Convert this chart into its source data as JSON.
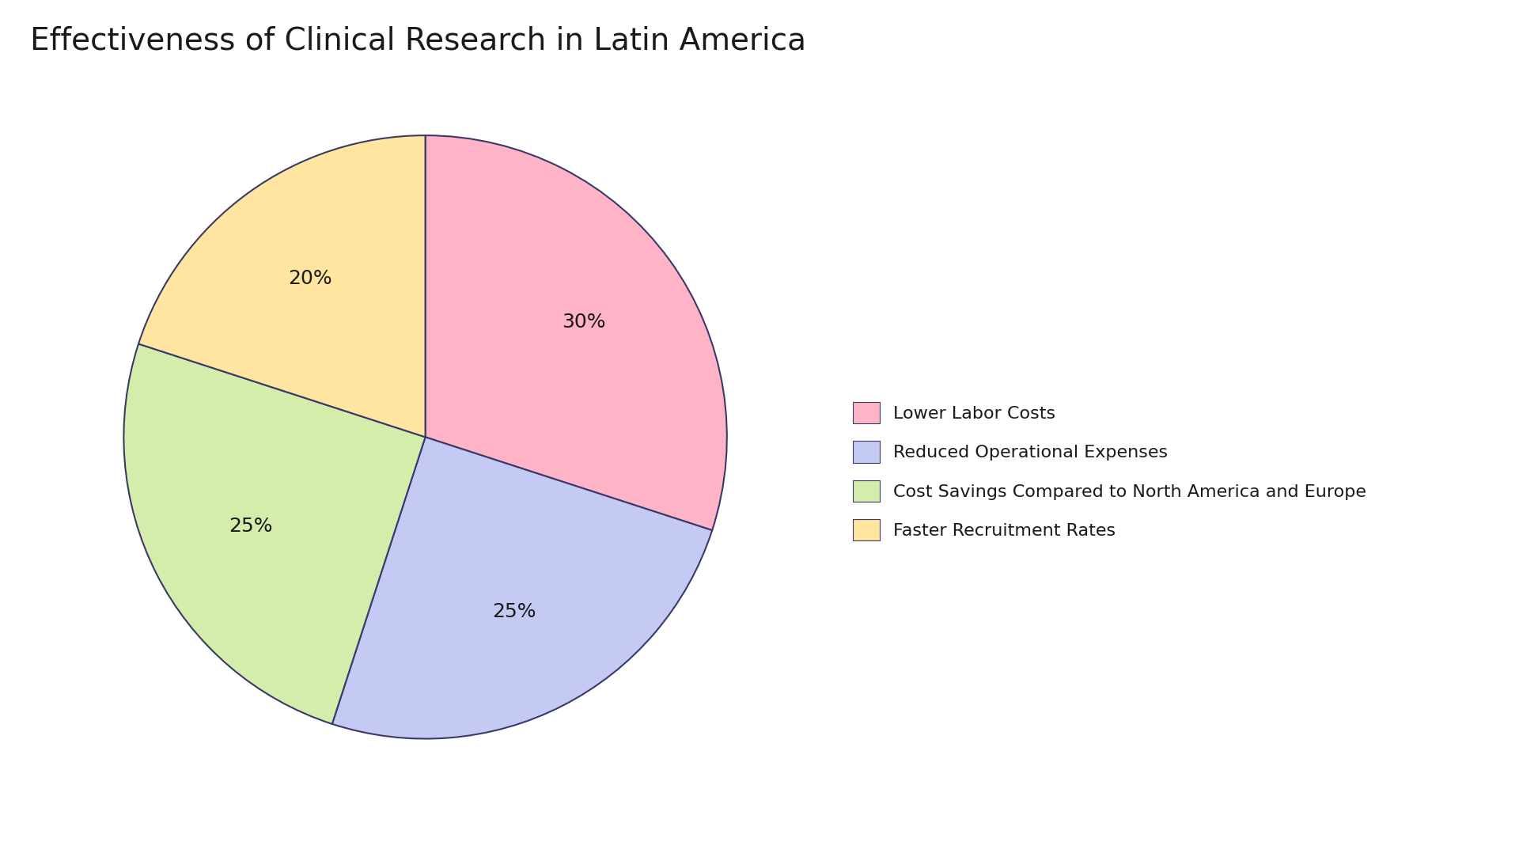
{
  "title": "Effectiveness of Clinical Research in Latin America",
  "labels": [
    "Lower Labor Costs",
    "Reduced Operational Expenses",
    "Cost Savings Compared to North America and Europe",
    "Faster Recruitment Rates"
  ],
  "values": [
    30,
    25,
    25,
    20
  ],
  "colors": [
    "#FFB3C6",
    "#C5CAF5",
    "#D4EDAA",
    "#FFE5A0"
  ],
  "edge_color": "#3a3a6a",
  "edge_width": 1.5,
  "title_fontsize": 28,
  "autopct_fontsize": 18,
  "legend_fontsize": 16,
  "startangle": 90,
  "background_color": "#ffffff",
  "text_color": "#1a1a1a"
}
